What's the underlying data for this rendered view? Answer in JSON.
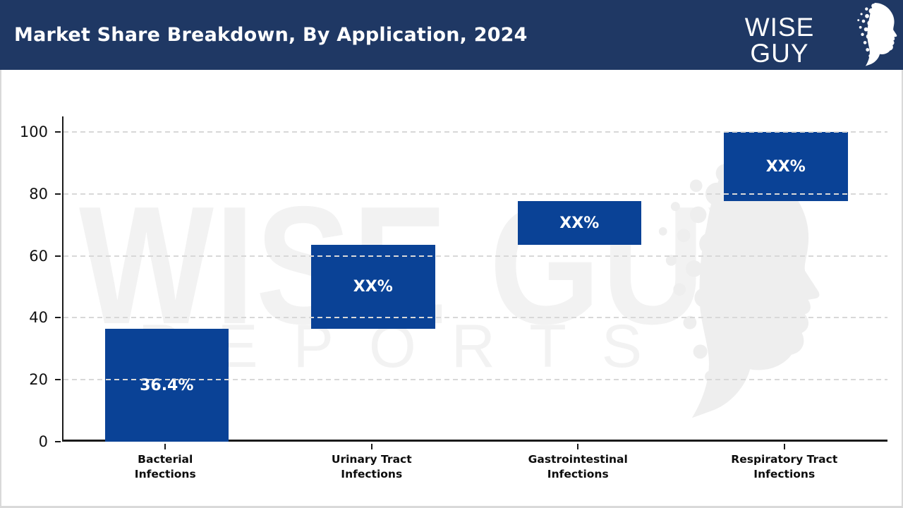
{
  "header": {
    "title": "Market Share Breakdown, By Application, 2024",
    "bg_color": "#1f3864",
    "logo": {
      "line1": "WISE GUY",
      "line2": "REPORTS"
    }
  },
  "watermark": {
    "line1": "WISE GUY",
    "line2": "REPORTS",
    "color": "#f2f2f2"
  },
  "frame_border_color": "#d9d9d9",
  "chart_data": {
    "type": "bar",
    "subtype": "waterfall",
    "title": "Market Share Breakdown, By Application, 2024",
    "categories": [
      "Bacterial Infections",
      "Urinary Tract Infections",
      "Gastrointestinal Infections",
      "Respiratory Tract Infections"
    ],
    "category_lines": [
      [
        "Bacterial",
        "Infections"
      ],
      [
        "Urinary Tract",
        "Infections"
      ],
      [
        "Gastrointestinal",
        "Infections"
      ],
      [
        "Respiratory Tract",
        "Infections"
      ]
    ],
    "bars": [
      {
        "category": "Bacterial Infections",
        "start": 0,
        "end": 36.4,
        "label": "36.4%"
      },
      {
        "category": "Urinary Tract Infections",
        "start": 36.4,
        "end": 63.6,
        "label": "XX%"
      },
      {
        "category": "Gastrointestinal Infections",
        "start": 63.6,
        "end": 77.6,
        "label": "XX%"
      },
      {
        "category": "Respiratory Tract Infections",
        "start": 77.6,
        "end": 100,
        "label": "XX%"
      }
    ],
    "xlabel": "",
    "ylabel": "",
    "ylim": [
      0,
      105
    ],
    "yticks": [
      0,
      20,
      40,
      60,
      80,
      100
    ],
    "grid": true,
    "grid_style": "dashed",
    "grid_color": "#d8d8d8",
    "legend": "none",
    "bar_color": "#0a4296",
    "bar_label_color": "#ffffff"
  }
}
